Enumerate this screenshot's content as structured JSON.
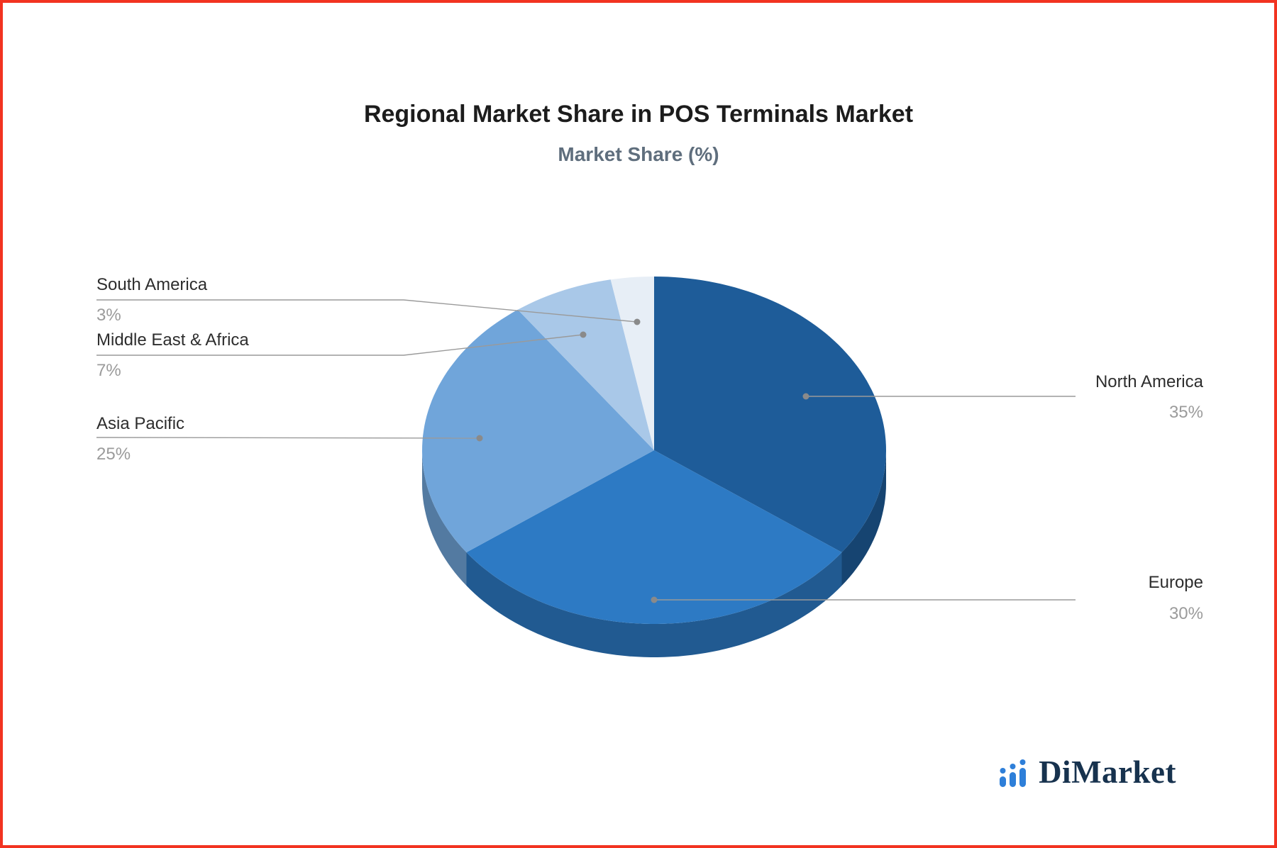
{
  "page": {
    "background_color": "#ffffff",
    "border_color": "#f23321"
  },
  "chart_data": {
    "type": "pie",
    "style": "pie3d",
    "title": "Regional Market Share in POS Terminals Market",
    "subtitle": "Market Share (%)",
    "unit": "%",
    "categories": [
      "North America",
      "Europe",
      "Asia Pacific",
      "Middle East & Africa",
      "South America"
    ],
    "values": [
      35,
      30,
      25,
      7,
      3
    ],
    "labels": [
      "35%",
      "30%",
      "25%",
      "7%",
      "3%"
    ],
    "colors": [
      "#1e5c99",
      "#2d7ac4",
      "#70a5da",
      "#a9c8e8",
      "#e7eef6"
    ],
    "start_angle_deg": 0,
    "direction": "clockwise",
    "legend": "off",
    "label_style": "outside-leader-lines",
    "connector_color": "#9a9a9a"
  },
  "logo": {
    "text": "DiMarket",
    "icon": "bar-chart-icon",
    "text_color": "#17324e",
    "icon_color": "#2e7fd9"
  }
}
